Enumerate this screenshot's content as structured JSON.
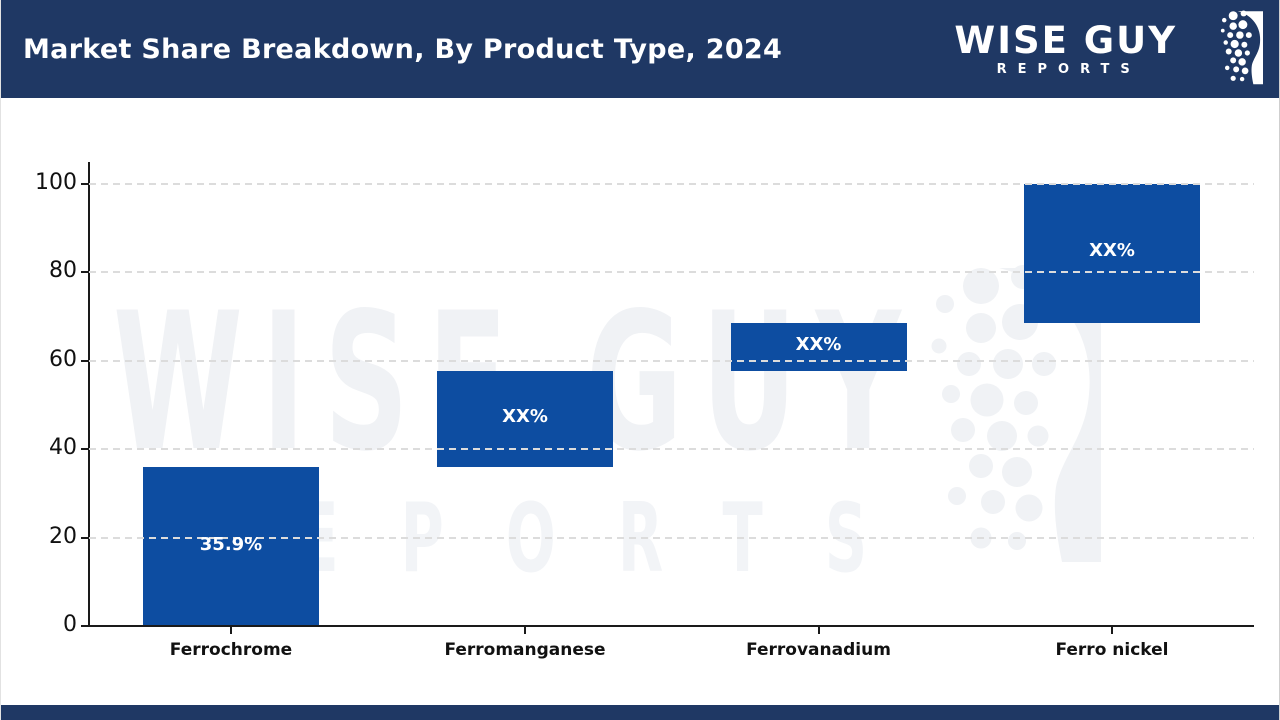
{
  "header": {
    "title": "Market Share Breakdown, By Product Type, 2024",
    "logo": {
      "line1": "WISE GUY",
      "line2": "REPORTS"
    }
  },
  "watermark": {
    "line1": "WISE GUY",
    "line2": "REPORTS"
  },
  "colors": {
    "header_navy": "#1F3864",
    "bar_blue": "#0D4DA1",
    "gridline": "#DCDCDC",
    "watermark_gray": "#F0F2F5",
    "axis_black": "#1a1a1a",
    "label_white": "#FFFFFF"
  },
  "chart_data": {
    "type": "bar",
    "subtype": "waterfall",
    "title": "Market Share Breakdown, By Product Type, 2024",
    "categories": [
      "Ferrochrome",
      "Ferromanganese",
      "Ferrovanadium",
      "Ferro nickel"
    ],
    "segments": [
      {
        "category": "Ferrochrome",
        "from": 0,
        "to": 35.9,
        "label": "35.9%"
      },
      {
        "category": "Ferromanganese",
        "from": 35.9,
        "to": 57.7,
        "label": "XX%"
      },
      {
        "category": "Ferrovanadium",
        "from": 57.7,
        "to": 68.6,
        "label": "XX%"
      },
      {
        "category": "Ferro nickel",
        "from": 68.6,
        "to": 100,
        "label": "XX%"
      }
    ],
    "xlabel": "",
    "ylabel": "",
    "ylim": [
      0,
      100
    ],
    "yticks": [
      0,
      20,
      40,
      60,
      80,
      100
    ],
    "grid": true,
    "grid_style": "dashed",
    "legend": "none",
    "bar_color": "#0D4DA1"
  }
}
